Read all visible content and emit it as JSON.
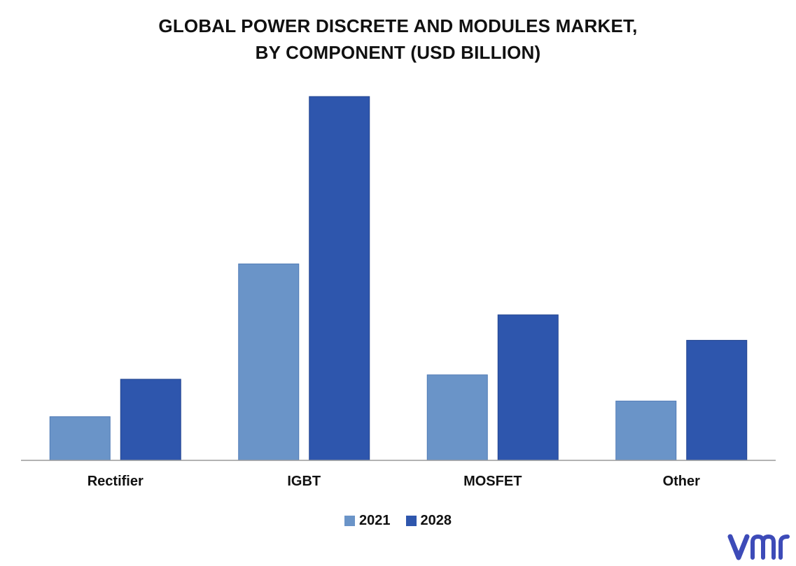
{
  "chart_data": {
    "type": "bar",
    "title_line1": "GLOBAL POWER DISCRETE AND MODULES MARKET,",
    "title_line2": "BY COMPONENT (USD BILLION)",
    "categories": [
      "Rectifier",
      "IGBT",
      "MOSFET",
      "Other"
    ],
    "series": [
      {
        "name": "2021",
        "values": [
          1.2,
          5.4,
          2.35,
          1.63
        ],
        "color": "#6a94c8"
      },
      {
        "name": "2028",
        "values": [
          2.23,
          10.0,
          4.0,
          3.3
        ],
        "color": "#2e56ad"
      }
    ],
    "xlabel": "",
    "ylabel": "",
    "ylim": [
      0,
      10.5
    ],
    "grid": false,
    "legend_position": "bottom"
  },
  "brand": {
    "logo_name": "vmr-logo",
    "color": "#3d4bb8"
  }
}
